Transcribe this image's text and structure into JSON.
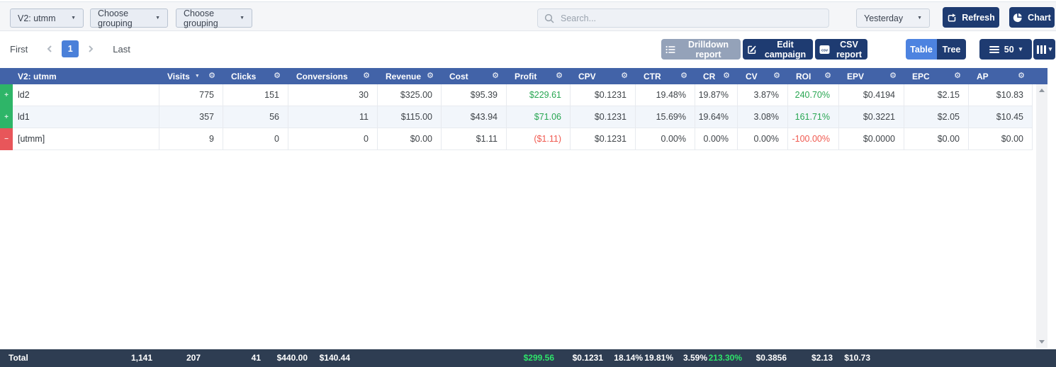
{
  "toolbar": {
    "variable_dropdown": "V2: utmm",
    "grouping_dropdown_1": "Choose grouping",
    "grouping_dropdown_2": "Choose grouping",
    "search_placeholder": "Search...",
    "date_range_dropdown": "Yesterday",
    "refresh_button": "Refresh",
    "chart_button": "Chart"
  },
  "pagination": {
    "first_label": "First",
    "current_page": "1",
    "last_label": "Last"
  },
  "actions": {
    "drilldown_button": "Drilldown report",
    "edit_campaign_button": "Edit campaign",
    "csv_button": "CSV report",
    "table_toggle": "Table",
    "tree_toggle": "Tree",
    "rows_per_page": "50",
    "csv_icon_text": "csv"
  },
  "table": {
    "columns": [
      {
        "label": "V2: utmm"
      },
      {
        "label": "Visits",
        "sorted": "desc"
      },
      {
        "label": "Clicks"
      },
      {
        "label": "Conversions"
      },
      {
        "label": "Revenue"
      },
      {
        "label": "Cost"
      },
      {
        "label": "Profit"
      },
      {
        "label": "CPV"
      },
      {
        "label": "CTR"
      },
      {
        "label": "CR"
      },
      {
        "label": "CV"
      },
      {
        "label": "ROI"
      },
      {
        "label": "EPV"
      },
      {
        "label": "EPC"
      },
      {
        "label": "AP"
      }
    ],
    "rows": [
      {
        "name": "ld2",
        "indicator": "positive",
        "cells": [
          "775",
          "151",
          "30",
          "$325.00",
          "$95.39",
          "$229.61",
          "$0.1231",
          "19.48%",
          "19.87%",
          "3.87%",
          "240.70%",
          "$0.4194",
          "$2.15",
          "$10.83"
        ],
        "cell_states": [
          "",
          "",
          "",
          "",
          "",
          "pos",
          "",
          "",
          "",
          "",
          "pos",
          "",
          "",
          ""
        ]
      },
      {
        "name": "ld1",
        "indicator": "positive",
        "cells": [
          "357",
          "56",
          "11",
          "$115.00",
          "$43.94",
          "$71.06",
          "$0.1231",
          "15.69%",
          "19.64%",
          "3.08%",
          "161.71%",
          "$0.3221",
          "$2.05",
          "$10.45"
        ],
        "cell_states": [
          "",
          "",
          "",
          "",
          "",
          "pos",
          "",
          "",
          "",
          "",
          "pos",
          "",
          "",
          ""
        ]
      },
      {
        "name": "[utmm]",
        "indicator": "negative",
        "cells": [
          "9",
          "0",
          "0",
          "$0.00",
          "$1.11",
          "($1.11)",
          "$0.1231",
          "0.00%",
          "0.00%",
          "0.00%",
          "-100.00%",
          "$0.0000",
          "$0.00",
          "$0.00"
        ],
        "cell_states": [
          "",
          "",
          "",
          "",
          "",
          "neg",
          "",
          "",
          "",
          "",
          "neg",
          "",
          "",
          ""
        ]
      }
    ],
    "total": {
      "label": "Total",
      "cells": [
        "1,141",
        "207",
        "41",
        "$440.00",
        "$140.44",
        "$299.56",
        "$0.1231",
        "18.14%",
        "19.81%",
        "3.59%",
        "213.30%",
        "$0.3856",
        "$2.13",
        "$10.73"
      ],
      "cell_states": [
        "",
        "",
        "",
        "",
        "",
        "pos",
        "",
        "",
        "",
        "",
        "pos",
        "",
        "",
        ""
      ]
    }
  },
  "colors": {
    "header_blue": "#4263a8",
    "button_navy": "#1e3b71",
    "active_blue": "#4d83e0",
    "pagination_active_blue": "#4a80d9",
    "drilldown_muted": "#94a2b9",
    "positive_green": "#28a652",
    "negative_red": "#f0594f",
    "row_indicator_green": "#2eb568",
    "row_indicator_red": "#e8565a",
    "total_row_bg": "#2e3d52",
    "total_positive_green": "#2ee36a",
    "row_stripe": "#f2f6fb"
  }
}
